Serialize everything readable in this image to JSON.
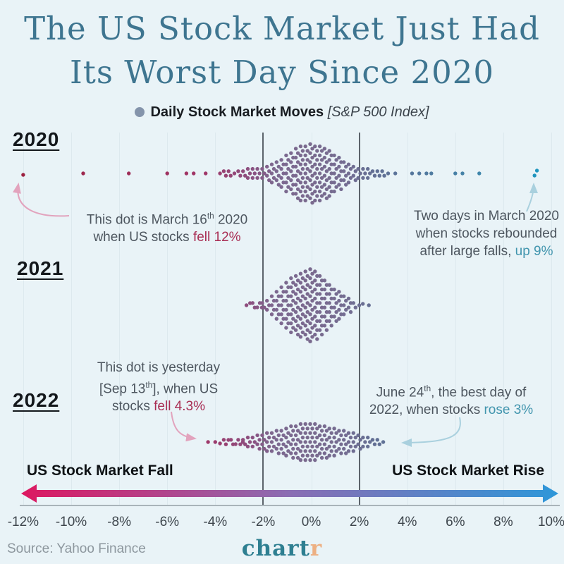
{
  "header": {
    "title_line1": "The US Stock Market Just Had",
    "title_line2": "Its Worst Day Since 2020",
    "title_color": "#3e7590"
  },
  "legend": {
    "dot_color": "#8494ab",
    "label": "Daily Stock Market Moves",
    "sublabel": "[S&P 500 Index]"
  },
  "footer": {
    "fall_label": "US Stock Market Fall",
    "rise_label": "US Stock Market Rise",
    "source": "Source: Yahoo Finance",
    "logo_main": "chart",
    "logo_accent": "r",
    "logo_main_color": "#2e7f91",
    "logo_accent_color": "#edb083"
  },
  "chart_data": {
    "type": "scatter",
    "subtype": "beeswarm",
    "title": "The US Stock Market Just Had Its Worst Day Since 2020",
    "legend_label": "Daily Stock Market Moves [S&P 500 Index]",
    "x_unit": "percent daily move",
    "x_range": [
      -12,
      10
    ],
    "x_ticks": [
      "-12%",
      "-10%",
      "-8%",
      "-6%",
      "-4%",
      "-2%",
      "0%",
      "2%",
      "4%",
      "6%",
      "8%",
      "10%"
    ],
    "x_tick_values": [
      -12,
      -10,
      -8,
      -6,
      -4,
      -2,
      0,
      2,
      4,
      6,
      8,
      10
    ],
    "highlight_line_values": [
      -2,
      2
    ],
    "grid": true,
    "rows": [
      {
        "label": "2020",
        "bins": [
          [
            -12,
            1,
            2
          ],
          [
            -9.5,
            1
          ],
          [
            -7.6,
            1
          ],
          [
            -6,
            1
          ],
          [
            -5.2,
            1
          ],
          [
            -4.9,
            1
          ],
          [
            -4.4,
            1
          ],
          [
            -3.8,
            1
          ],
          [
            -3.6,
            2
          ],
          [
            -3.4,
            2
          ],
          [
            -3.2,
            1
          ],
          [
            -3.0,
            2
          ],
          [
            -2.8,
            2
          ],
          [
            -2.6,
            3
          ],
          [
            -2.4,
            3
          ],
          [
            -2.2,
            3
          ],
          [
            -2.0,
            3
          ],
          [
            -1.8,
            4
          ],
          [
            -1.6,
            5
          ],
          [
            -1.4,
            6
          ],
          [
            -1.2,
            7
          ],
          [
            -1.0,
            9
          ],
          [
            -0.8,
            10
          ],
          [
            -0.6,
            12
          ],
          [
            -0.4,
            13
          ],
          [
            -0.2,
            13
          ],
          [
            0,
            14
          ],
          [
            0.2,
            13
          ],
          [
            0.4,
            13
          ],
          [
            0.6,
            12
          ],
          [
            0.8,
            11
          ],
          [
            1.0,
            9
          ],
          [
            1.2,
            8
          ],
          [
            1.4,
            6
          ],
          [
            1.6,
            5
          ],
          [
            1.8,
            4
          ],
          [
            2.0,
            3
          ],
          [
            2.2,
            3
          ],
          [
            2.4,
            3
          ],
          [
            2.6,
            2
          ],
          [
            2.8,
            2
          ],
          [
            3.0,
            2
          ],
          [
            3.2,
            1
          ],
          [
            3.5,
            1
          ],
          [
            4.2,
            1
          ],
          [
            4.5,
            1
          ],
          [
            4.8,
            1
          ],
          [
            5.0,
            1
          ],
          [
            6.0,
            1
          ],
          [
            6.3,
            1
          ],
          [
            7.0,
            1
          ],
          [
            9.3,
            1,
            3
          ],
          [
            9.4,
            1,
            -4
          ]
        ]
      },
      {
        "label": "2021",
        "bins": [
          [
            -2.7,
            1
          ],
          [
            -2.55,
            1,
            -3
          ],
          [
            -2.4,
            2
          ],
          [
            -2.25,
            1,
            3
          ],
          [
            -2.1,
            2
          ],
          [
            -2.0,
            2
          ],
          [
            -1.8,
            3
          ],
          [
            -1.6,
            5
          ],
          [
            -1.4,
            7
          ],
          [
            -1.2,
            9
          ],
          [
            -1.0,
            11
          ],
          [
            -0.8,
            13
          ],
          [
            -0.6,
            14
          ],
          [
            -0.4,
            15
          ],
          [
            -0.2,
            16
          ],
          [
            0,
            17
          ],
          [
            0.2,
            16
          ],
          [
            0.4,
            14
          ],
          [
            0.6,
            12
          ],
          [
            0.8,
            10
          ],
          [
            1.0,
            8
          ],
          [
            1.2,
            7
          ],
          [
            1.4,
            5
          ],
          [
            1.6,
            4
          ],
          [
            1.8,
            2
          ],
          [
            2.0,
            1
          ],
          [
            2.15,
            1,
            -2
          ],
          [
            2.4,
            1
          ]
        ]
      },
      {
        "label": "2022",
        "bins": [
          [
            -4.3,
            1
          ],
          [
            -4.0,
            1
          ],
          [
            -3.8,
            1,
            2
          ],
          [
            -3.6,
            2
          ],
          [
            -3.45,
            1,
            -3
          ],
          [
            -3.3,
            2
          ],
          [
            -3.15,
            1,
            3
          ],
          [
            -3.0,
            2
          ],
          [
            -2.85,
            1
          ],
          [
            -2.8,
            2
          ],
          [
            -2.6,
            3
          ],
          [
            -2.4,
            3
          ],
          [
            -2.2,
            4
          ],
          [
            -2.0,
            4
          ],
          [
            -1.8,
            5
          ],
          [
            -1.6,
            5
          ],
          [
            -1.4,
            6
          ],
          [
            -1.2,
            6
          ],
          [
            -1.0,
            7
          ],
          [
            -0.8,
            8
          ],
          [
            -0.6,
            8
          ],
          [
            -0.4,
            9
          ],
          [
            -0.2,
            9
          ],
          [
            0,
            9
          ],
          [
            0.2,
            9
          ],
          [
            0.4,
            8
          ],
          [
            0.6,
            8
          ],
          [
            0.8,
            7
          ],
          [
            1.0,
            7
          ],
          [
            1.2,
            6
          ],
          [
            1.4,
            6
          ],
          [
            1.6,
            5
          ],
          [
            1.8,
            5
          ],
          [
            2.0,
            4
          ],
          [
            2.2,
            3
          ],
          [
            2.4,
            3
          ],
          [
            2.6,
            2
          ],
          [
            2.8,
            2
          ],
          [
            3.0,
            1
          ]
        ]
      }
    ],
    "annotations": [
      {
        "id": "march16",
        "arrow": "pink",
        "lines": [
          [
            {
              "t": "This dot is March 16"
            },
            {
              "t": "th",
              "sup": true
            },
            {
              "t": " 2020"
            }
          ],
          [
            {
              "t": "when US stocks "
            },
            {
              "t": "fell 12%",
              "accent": "fall"
            }
          ]
        ]
      },
      {
        "id": "rebound",
        "arrow": "blue",
        "lines": [
          [
            {
              "t": "Two days in March 2020"
            }
          ],
          [
            {
              "t": "when stocks rebounded"
            }
          ],
          [
            {
              "t": "after large falls, "
            },
            {
              "t": "up 9%",
              "accent": "rise"
            }
          ]
        ]
      },
      {
        "id": "sep13",
        "arrow": "pink",
        "lines": [
          [
            {
              "t": "This dot is yesterday"
            }
          ],
          [
            {
              "t": "[Sep 13"
            },
            {
              "t": "th",
              "sup": true
            },
            {
              "t": "], when US"
            }
          ],
          [
            {
              "t": "stocks "
            },
            {
              "t": "fell 4.3%",
              "accent": "fall"
            }
          ]
        ]
      },
      {
        "id": "june24",
        "arrow": "blue",
        "lines": [
          [
            {
              "t": "June 24"
            },
            {
              "t": "th",
              "sup": true
            },
            {
              "t": ", the best day of"
            }
          ],
          [
            {
              "t": "2022, when stocks "
            },
            {
              "t": "rose 3%",
              "accent": "rise"
            }
          ]
        ]
      }
    ],
    "accent_colors": {
      "fall": "#a82d53",
      "rise": "#4195ae"
    },
    "arrow_colors": {
      "pink": "#e2a3bd",
      "blue": "#a9d0de"
    },
    "dot_color_stops": [
      [
        -12,
        "#9c2040"
      ],
      [
        -4.5,
        "#a03668"
      ],
      [
        -2.5,
        "#8c5080"
      ],
      [
        -1.5,
        "#7c6890"
      ],
      [
        0,
        "#7a6a8e"
      ],
      [
        1.5,
        "#746d92"
      ],
      [
        2.5,
        "#646f94"
      ],
      [
        4,
        "#57759b"
      ],
      [
        7,
        "#3f86ab"
      ],
      [
        9,
        "#2191ba"
      ],
      [
        10,
        "#1e9ac4"
      ]
    ],
    "gradient_arrow": {
      "left_color": "#dd1760",
      "mid_color": "#8a6db3",
      "right_color": "#2d97d9"
    }
  }
}
